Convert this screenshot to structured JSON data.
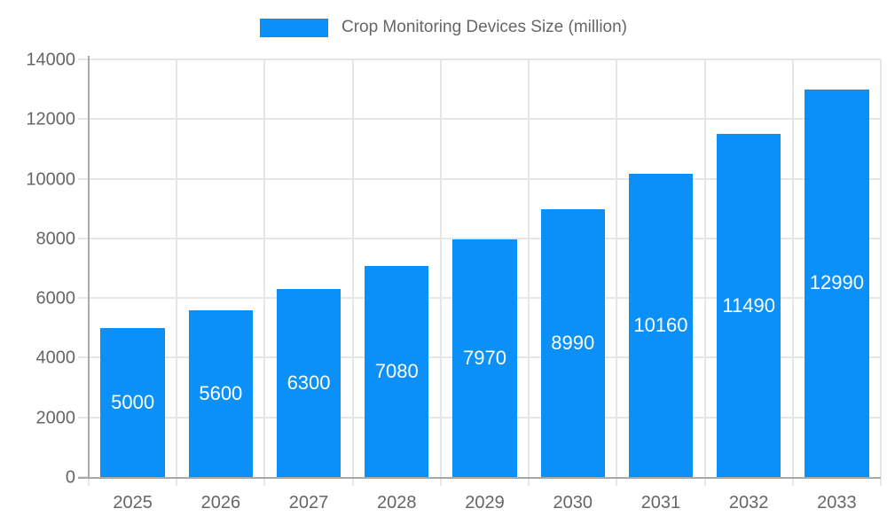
{
  "chart_data": {
    "type": "bar",
    "title": "Crop Monitoring Devices Size (million)",
    "categories": [
      "2025",
      "2026",
      "2027",
      "2028",
      "2029",
      "2030",
      "2031",
      "2032",
      "2033"
    ],
    "values": [
      5000,
      5600,
      6300,
      7080,
      7970,
      8990,
      10160,
      11490,
      12990
    ],
    "xlabel": "",
    "ylabel": "",
    "ylim": [
      0,
      14000
    ],
    "yticks": [
      0,
      2000,
      4000,
      6000,
      8000,
      10000,
      12000,
      14000
    ],
    "grid": "on",
    "legend_position": "top-center",
    "value_labels": "inside-bars-centered",
    "colors": {
      "bar": "#0a90f6",
      "grid": "#e6e6e6",
      "axis": "#a8a8a8",
      "tick_label": "#666666",
      "title": "#666666",
      "value_label": "#ffffff"
    }
  }
}
